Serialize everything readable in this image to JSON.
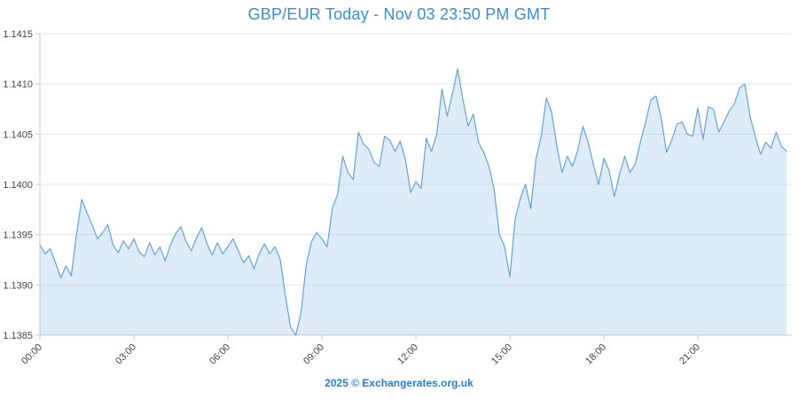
{
  "header": {
    "title": "GBP/EUR Today - Nov 03 23:50 PM GMT"
  },
  "footer": {
    "copyright": "2025 © Exchangerates.org.uk"
  },
  "colors": {
    "title_blue": "#3b8dd4",
    "footer_blue": "#2c7dc4",
    "line_blue": "#64a3da",
    "area_fill": "rgba(124,181,236,0.25)",
    "gridline": "#e6e6e6",
    "axis_line": "#c8c8c8",
    "tick_label": "#444444"
  },
  "chart_data": {
    "type": "area",
    "title": "GBP/EUR Today - Nov 03 23:50 PM GMT",
    "xlabel": "",
    "ylabel": "",
    "legend": false,
    "grid": "horizontal",
    "ylim": [
      1.1385,
      1.1415
    ],
    "y_ticks": [
      1.1385,
      1.139,
      1.1395,
      1.14,
      1.1405,
      1.141,
      1.1415
    ],
    "x_range_hours": [
      0,
      24
    ],
    "x_tick_hours": [
      0,
      3,
      6,
      9,
      12,
      15,
      18,
      21
    ],
    "x_tick_labels": [
      "00:00",
      "03:00",
      "06:00",
      "09:00",
      "12:00",
      "15:00",
      "18:00",
      "21:00"
    ],
    "series": [
      {
        "name": "GBP/EUR",
        "start_time": "00:00",
        "end_time": "23:50",
        "interval_minutes": 10,
        "values": [
          1.1394,
          1.13931,
          1.13936,
          1.13922,
          1.13907,
          1.13919,
          1.13909,
          1.1395,
          1.13985,
          1.13972,
          1.1396,
          1.13946,
          1.13952,
          1.1396,
          1.1394,
          1.13932,
          1.13944,
          1.13936,
          1.13946,
          1.13933,
          1.13928,
          1.13942,
          1.1393,
          1.13938,
          1.13924,
          1.1394,
          1.13951,
          1.13958,
          1.13943,
          1.13934,
          1.13947,
          1.13957,
          1.13941,
          1.1393,
          1.13942,
          1.13931,
          1.13938,
          1.13946,
          1.13934,
          1.13922,
          1.13929,
          1.13916,
          1.13931,
          1.13941,
          1.13931,
          1.13938,
          1.13926,
          1.1389,
          1.13858,
          1.1385,
          1.13872,
          1.1392,
          1.13943,
          1.13952,
          1.13946,
          1.13938,
          1.13976,
          1.1399,
          1.14028,
          1.14012,
          1.14005,
          1.14052,
          1.1404,
          1.14035,
          1.14022,
          1.14018,
          1.14048,
          1.14044,
          1.14033,
          1.14043,
          1.14025,
          1.13992,
          1.14003,
          1.13996,
          1.14046,
          1.14033,
          1.1405,
          1.14095,
          1.14068,
          1.1409,
          1.14115,
          1.14085,
          1.14058,
          1.1407,
          1.14042,
          1.14032,
          1.14018,
          1.13995,
          1.1395,
          1.13938,
          1.13908,
          1.13965,
          1.13986,
          1.14,
          1.13976,
          1.14025,
          1.14048,
          1.14086,
          1.14072,
          1.14038,
          1.14012,
          1.14028,
          1.14018,
          1.14034,
          1.14058,
          1.14042,
          1.1402,
          1.14,
          1.14026,
          1.14014,
          1.13988,
          1.1401,
          1.14028,
          1.14012,
          1.1402,
          1.14042,
          1.14062,
          1.14084,
          1.14088,
          1.14066,
          1.14032,
          1.14044,
          1.1406,
          1.14062,
          1.1405,
          1.14048,
          1.14076,
          1.14045,
          1.14077,
          1.14075,
          1.14052,
          1.14062,
          1.14073,
          1.1408,
          1.14096,
          1.141,
          1.14068,
          1.14048,
          1.1403,
          1.14042,
          1.14036,
          1.14052,
          1.14038,
          1.14033
        ]
      }
    ]
  }
}
